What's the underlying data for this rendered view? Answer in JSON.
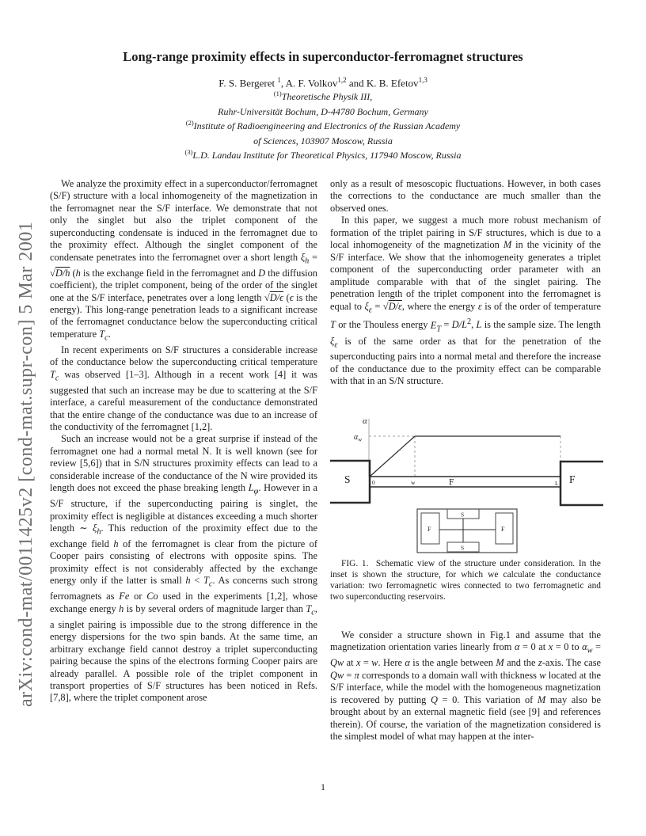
{
  "colors": {
    "text": "#1c1c1c",
    "watermark_gray": "#6e6e6e",
    "figure_line": "#2b2b2b",
    "figure_dashed": "#a0a0a0"
  },
  "sidebar": {
    "text": "arXiv:cond-mat/0011425v2  [cond-mat.supr-con]  5 Mar 2001"
  },
  "header": {
    "title": "Long-range proximity effects in superconductor-ferromagnet structures",
    "authors_html": "F. S. Bergeret <sup>1</sup>, A. F. Volkov<sup>1,2</sup> and K. B. Efetov<sup>1,3</sup>",
    "affiliations": [
      {
        "sup": "(1)",
        "text": "Theoretische Physik III,"
      },
      {
        "sup": "",
        "text": "Ruhr-Universität Bochum, D-44780 Bochum, Germany"
      },
      {
        "sup": "(2)",
        "text": "Institute of Radioengineering and Electronics of the Russian Academy"
      },
      {
        "sup": "",
        "text": "of Sciences, 103907 Moscow, Russia"
      },
      {
        "sup": "(3)",
        "text": "L.D. Landau Institute for Theoretical Physics, 117940 Moscow, Russia"
      }
    ]
  },
  "left_column": {
    "p1_html": "We analyze the proximity effect in a superconductor/ferromagnet (S/F) structure with a local inhomogeneity of the magnetization in the ferromagnet near the S/F interface. We demonstrate that not only the singlet but also the triplet component of the superconducting condensate is induced in the ferromagnet due to the proximity effect. Although the singlet component of the condensate penetrates into the ferromagnet over a short length <i>ξ<sub>h</sub></i> = √<span class='ol'><i>D/h</i></span> (<i>h</i> is the exchange field in the ferromagnet and <i>D</i> the diffusion coefficient), the triplet component, being of the order of the singlet one at the S/F interface, penetrates over a long length √<span class='ol'><i>D/ϵ</i></span> (<i>ϵ</i> is the energy). This long-range penetration leads to a significant increase of the ferromagnet conductance below the superconducting critical temperature <i>T<sub>c</sub></i>.",
    "p2_html": "In recent experiments on S/F structures a considerable increase of the conductance below the superconducting critical temperature <i>T<sub>c</sub></i> was observed [1–3]. Although in a recent work [4] it was suggested that such an increase may be due to scattering at the S/F interface, a careful measurement of the conductance demonstrated that the entire change of the conductance was due to an increase of the conductivity of the ferromagnet [1,2].",
    "p3_html": "Such an increase would not be a great surprise if instead of the ferromagnet one had a normal metal N. It is well known (see for review [5,6]) that in S/N structures proximity effects can lead to a considerable increase of the conductance of the N wire provided its length does not exceed the phase breaking length <i>L<sub>φ</sub></i>. However in a S/F structure, if the superconducting pairing is singlet, the proximity effect is negligible at distances exceeding a much shorter length ∼ <i>ξ<sub>h</sub></i>. This reduction of the proximity effect due to the exchange field <i>h</i> of the ferromagnet is clear from the picture of Cooper pairs consisting of electrons with opposite spins. The proximity effect is not considerably affected by the exchange energy only if the latter is small <i>h</i> &lt; <i>T<sub>c</sub></i>. As concerns such strong ferromagnets as <i>Fe</i> or <i>Co</i> used in the experiments [1,2], whose exchange energy <i>h</i> is by several orders of magnitude larger than <i>T<sub>c</sub></i>, a singlet pairing is impossible due to the strong difference in the energy dispersions for the two spin bands. At the same time, an arbitrary exchange field cannot destroy a triplet superconducting pairing because the spins of the electrons forming Cooper pairs are already parallel. A possible role of the triplet component in transport properties of S/F structures has been noticed in Refs. [7,8], where the triplet component arose"
  },
  "right_column": {
    "p1_html": "only as a result of mesoscopic fluctuations. However, in both cases the corrections to the conductance are much smaller than the observed ones.",
    "p2_html": "In this paper, we suggest a much more robust mechanism of formation of the triplet pairing in S/F structures, which is due to a local inhomogeneity of the magnetization <i>M</i> in the vicinity of the S/F interface. We show that the inhomogeneity generates a triplet component of the superconducting order parameter with an amplitude comparable with that of the singlet pairing. The penetration length of the triplet component into the ferromagnet is equal to <i>ξ<sub>ε</sub></i> = √<span class='ol'><i>D/ε</i></span>, where the energy <i>ε</i> is of the order of temperature <i>T</i> or the Thouless energy <i>E<sub>T</sub></i> = <i>D/L</i><sup>2</sup>, <i>L</i> is the sample size. The length <i>ξ<sub>ε</sub></i> is of the same order as that for the penetration of the superconducting pairs into a normal metal and therefore the increase of the conductance due to the proximity effect can be comparable with that in an S/N structure.",
    "caption_html": "FIG. 1.&nbsp;&nbsp;Schematic view of the structure under consideration. In the inset is shown the structure, for which we calculate the conductance variation: two ferromagnetic wires connected to two ferromagnetic and two superconducting reservoirs.",
    "p3_html": "We consider a structure shown in Fig.1 and assume that the magnetization orientation varies linearly from <i>α</i> = 0 at <i>x</i> = 0 to <i>α<sub>w</sub></i> = <i>Qw</i> at <i>x</i> = <i>w</i>. Here <i>α</i> is the angle between <i>M</i> and the <i>z</i>-axis. The case <i>Qw</i> = <i>π</i> corresponds to a domain wall with thickness <i>w</i> located at the S/F interface, while the model with the homogeneous magnetization is recovered by putting <i>Q</i> = 0. This variation of <i>M</i> may also be brought about by an external magnetic field (see [9] and references therein). Of course, the variation of the magnetization considered is the simplest model of what may happen at the inter-"
  },
  "figure": {
    "axis_label": "α",
    "alpha_w_main": "α",
    "alpha_w_sub": "w",
    "s_reservoir": "S",
    "f_reservoir": "F",
    "wire_label": "F",
    "tick_zero": "0",
    "tick_w": "w",
    "tick_L": "L",
    "inset": {
      "top": "S",
      "bottom": "S",
      "left": "F",
      "right": "F"
    }
  },
  "footer": {
    "page_number": "1"
  }
}
